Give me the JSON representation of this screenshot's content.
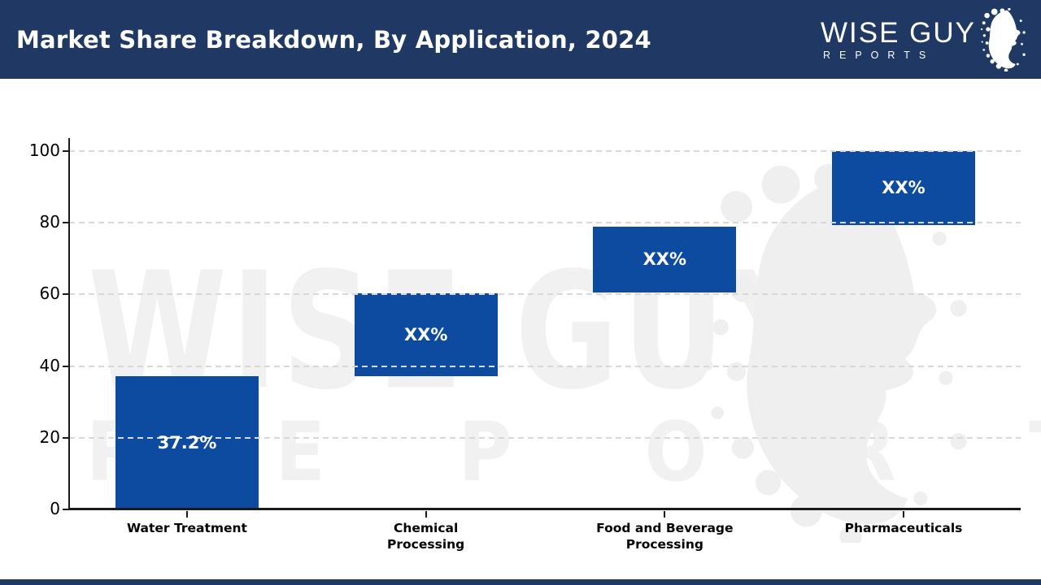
{
  "header": {
    "title": "Market Share Breakdown, By Application, 2024",
    "brand": {
      "name": "WISE GUY",
      "subtitle": "REPORTS"
    }
  },
  "watermark": {
    "line1": "WISE GUY",
    "line2": "R E P O R T S"
  },
  "chart_data": {
    "type": "bar",
    "subtype": "waterfall",
    "title": "Market Share Breakdown, By Application, 2024",
    "categories": [
      "Water Treatment",
      "Chemical Processing",
      "Food and Beverage Processing",
      "Pharmaceuticals"
    ],
    "category_label_lines": [
      [
        "Water Treatment"
      ],
      [
        "Chemical",
        "Processing"
      ],
      [
        "Food and Beverage",
        "Processing"
      ],
      [
        "Pharmaceuticals"
      ]
    ],
    "segments": [
      {
        "category": "Water Treatment",
        "start": 0,
        "end": 37.2,
        "label": "37.2%"
      },
      {
        "category": "Chemical Processing",
        "start": 37.2,
        "end": 60.3,
        "label": "XX%"
      },
      {
        "category": "Food and Beverage Processing",
        "start": 60.6,
        "end": 78.9,
        "label": "XX%"
      },
      {
        "category": "Pharmaceuticals",
        "start": 79.4,
        "end": 100,
        "label": "XX%"
      }
    ],
    "xlabel": "",
    "ylabel": "",
    "ylim": [
      0,
      100
    ],
    "yticks": [
      0,
      20,
      40,
      60,
      80,
      100
    ],
    "grid": "horizontal-dashed",
    "legend": "none"
  },
  "colors": {
    "header_bg": "#1f3864",
    "footer_bg": "#1f3864",
    "bar": "#0c4b9f",
    "bar_label": "#ffffff",
    "gridline": "#d8d8d8",
    "axis": "#1a1a1a",
    "watermark": "#f1f1f1"
  }
}
